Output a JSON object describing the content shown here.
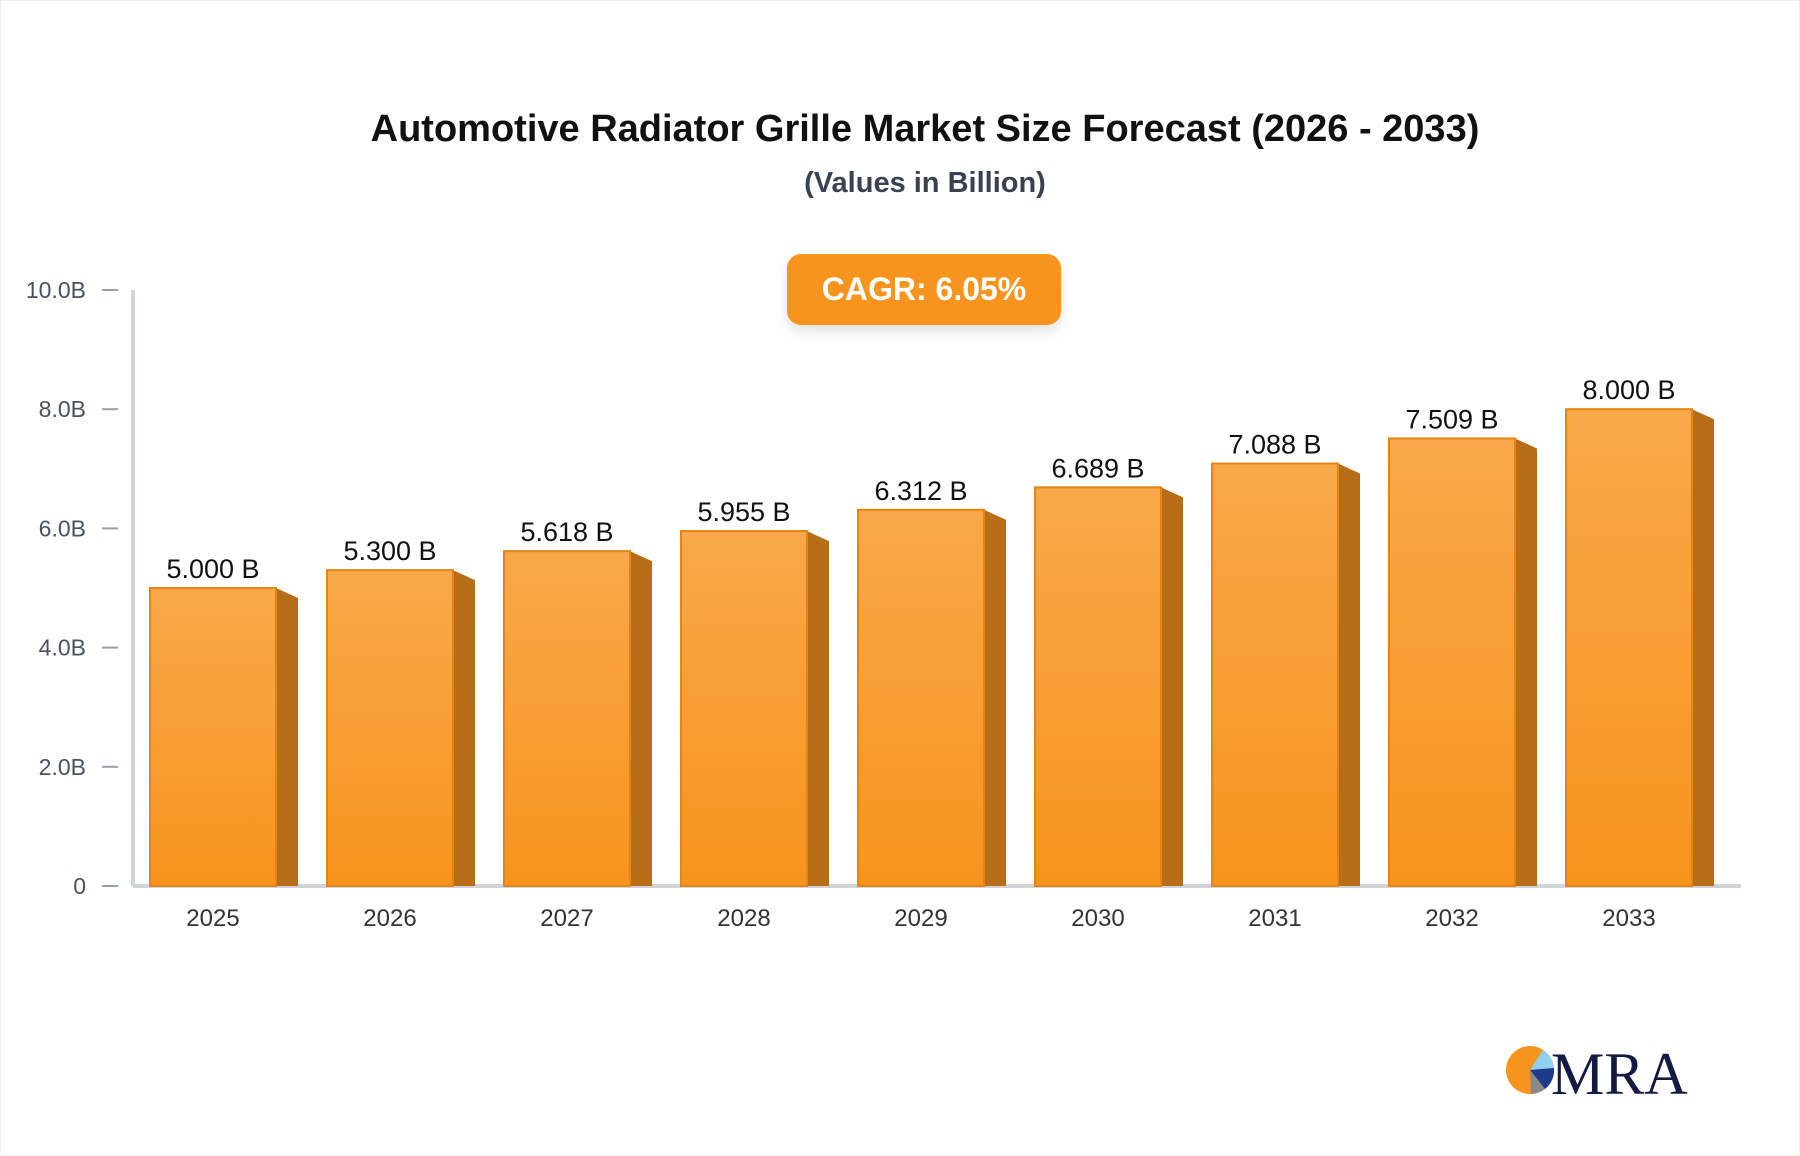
{
  "chart_data": {
    "type": "bar",
    "title": "Automotive Radiator Grille Market Size Forecast (2026 - 2033)",
    "subtitle": "(Values in Billion)",
    "annotation": "CAGR: 6.05%",
    "categories": [
      "2025",
      "2026",
      "2027",
      "2028",
      "2029",
      "2030",
      "2031",
      "2032",
      "2033"
    ],
    "values": [
      5.0,
      5.3,
      5.618,
      5.955,
      6.312,
      6.689,
      7.088,
      7.509,
      8.0
    ],
    "data_labels": [
      "5.000 B",
      "5.300 B",
      "5.618 B",
      "5.955 B",
      "6.312 B",
      "6.689 B",
      "7.088 B",
      "7.509 B",
      "8.000 B"
    ],
    "yticks": [
      0,
      2,
      4,
      6,
      8,
      10
    ],
    "ytick_labels": [
      "0",
      "2.0B",
      "4.0B",
      "6.0B",
      "8.0B",
      "10.0B"
    ],
    "ylim": [
      0,
      10
    ],
    "xlabel": "",
    "ylabel": "",
    "grid": false,
    "style": "3d-bar",
    "colors": {
      "bar": "#f7941d",
      "bar_top": "#f8a84a",
      "bar_side": "#b86e18",
      "badge": "#f7941d",
      "axis": "#d0d3da"
    }
  },
  "logo": {
    "text": "MRA",
    "colors": {
      "orange": "#f7941d",
      "navy": "#141a44",
      "light_blue": "#8fd0f0",
      "blue": "#1e3a8a",
      "gray": "#8a8a8a"
    }
  }
}
